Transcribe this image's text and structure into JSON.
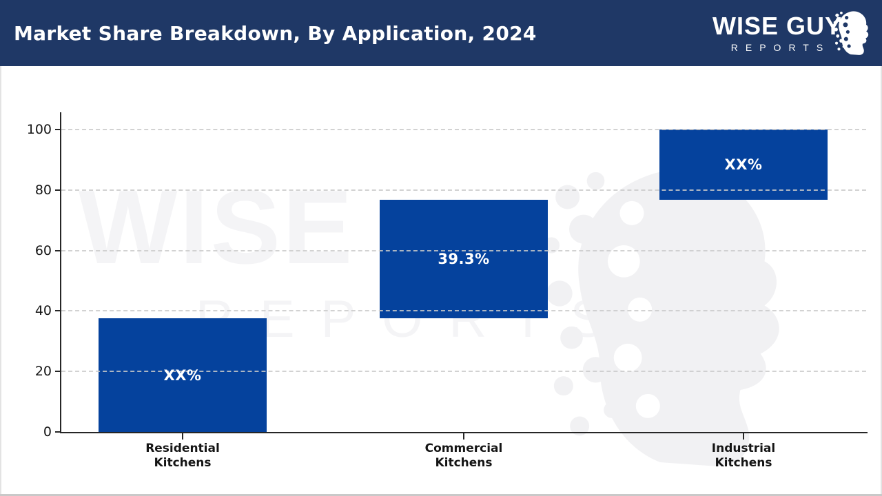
{
  "header": {
    "title": "Market Share Breakdown, By Application, 2024",
    "logo": {
      "line1": "WISE GUY",
      "line2": "REPORTS"
    }
  },
  "watermark": {
    "line1": "WISE",
    "line2": "REPORTS"
  },
  "colors": {
    "header_bg": "#1f3866",
    "bar": "#05429d",
    "bar_label": "#ffffff",
    "axis": "#262626",
    "grid": "#cacaca",
    "tick_text": "#151515",
    "watermark": "#f4f4f6",
    "bottom_strip": "#c9c9c9"
  },
  "chart_data": {
    "type": "bar",
    "subtype": "floating_segment_waterfall",
    "title": "Market Share Breakdown, By Application, 2024",
    "categories": [
      "Residential Kitchens",
      "Commercial Kitchens",
      "Industrial Kitchens"
    ],
    "category_lines": [
      [
        "Residential",
        "Kitchens"
      ],
      [
        "Commercial",
        "Kitchens"
      ],
      [
        "Industrial",
        "Kitchens"
      ]
    ],
    "segments": [
      {
        "category": "Residential Kitchens",
        "from": 0,
        "to": 37.5,
        "label": "XX%",
        "value_estimated": 37.5
      },
      {
        "category": "Commercial Kitchens",
        "from": 37.5,
        "to": 76.8,
        "label": "39.3%",
        "value_estimated": 39.3
      },
      {
        "category": "Industrial Kitchens",
        "from": 76.8,
        "to": 100,
        "label": "XX%",
        "value_estimated": 23.2
      }
    ],
    "y_ticks": [
      0,
      20,
      40,
      60,
      80,
      100
    ],
    "ylim": [
      0,
      105.7
    ],
    "xlabel": "",
    "ylabel": "",
    "grid": true,
    "grid_style": "dashed",
    "legend": false
  }
}
